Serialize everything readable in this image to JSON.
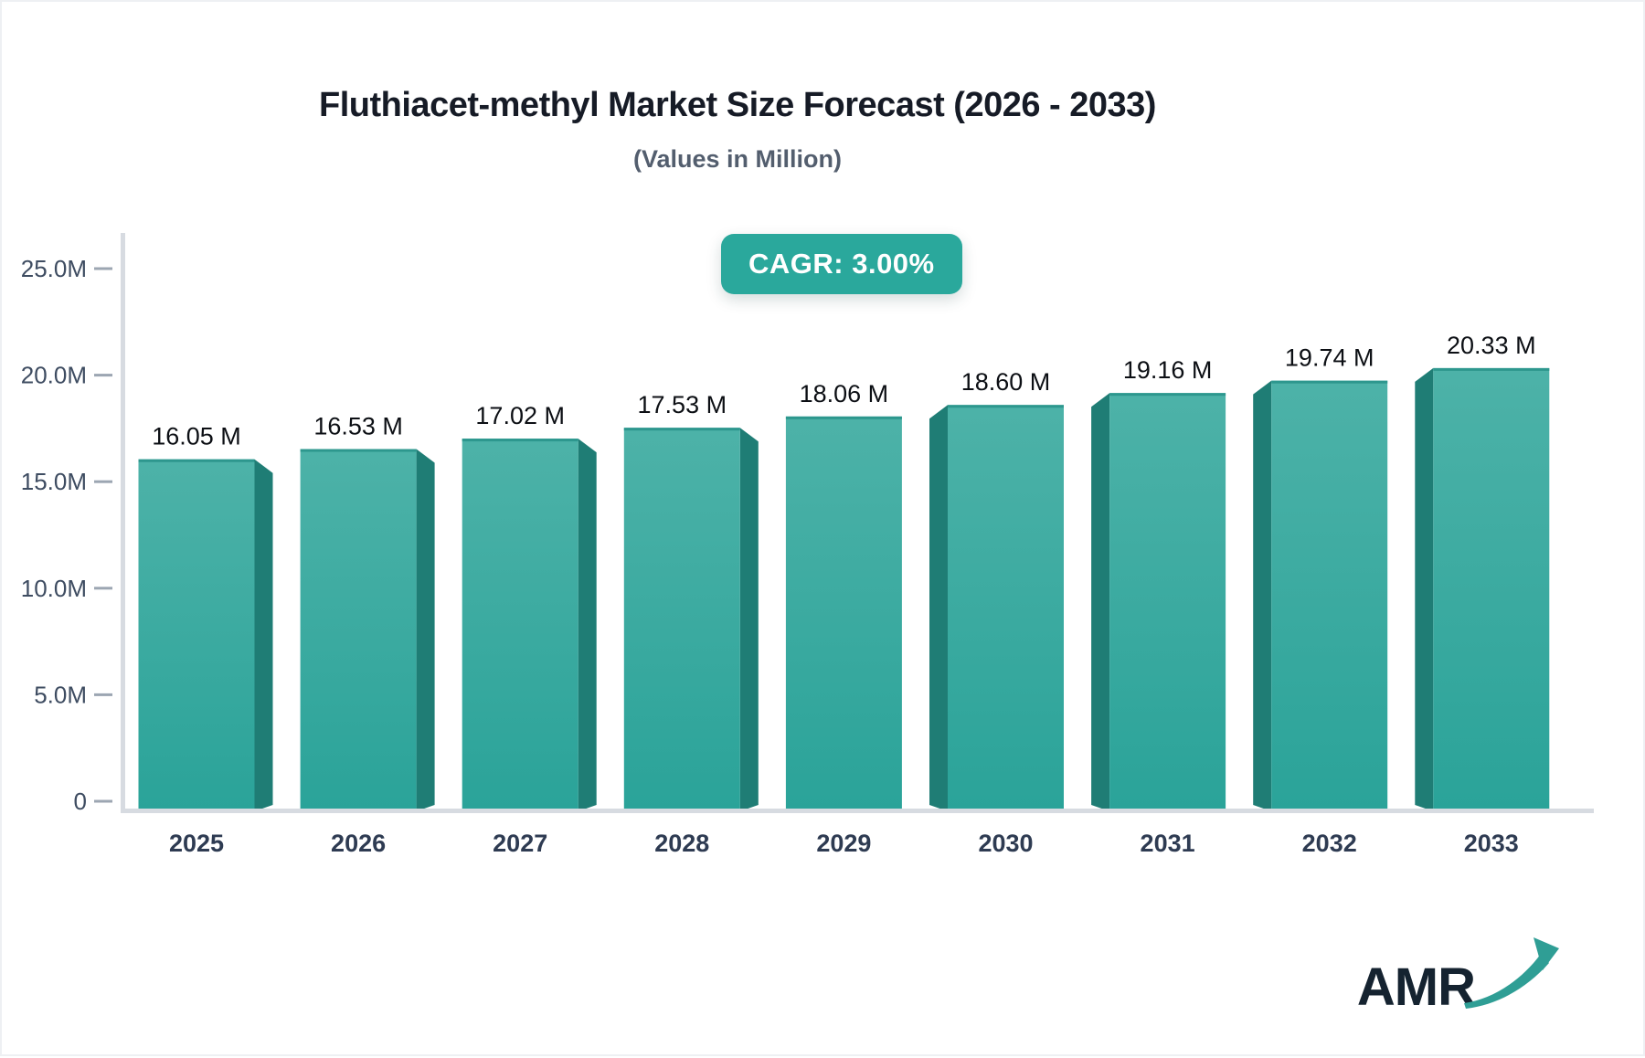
{
  "header": {
    "title": "Fluthiacet-methyl Market Size Forecast (2026 - 2033)",
    "subtitle": "(Values in Million)",
    "cagr_label": "CAGR: 3.00%"
  },
  "branding": {
    "logo_text": "AMR"
  },
  "colors": {
    "accent": "#2aa89c",
    "bar_front_top": "#4db2a8",
    "bar_front_bottom": "#2aa399",
    "bar_top_edge": "#2d978e",
    "bar_side": "#1f7d75",
    "axis_line": "#d7dbe1",
    "tick_mark": "#9ca6b2",
    "ytick_text": "#3e4c61",
    "xtick_text": "#2e3b52",
    "value_text": "#0c0f14"
  },
  "chart_data": {
    "type": "bar",
    "title": "Fluthiacet-methyl Market Size Forecast (2026 - 2033)",
    "subtitle": "(Values in Million)",
    "annotation": "CAGR: 3.00%",
    "categories": [
      "2025",
      "2026",
      "2027",
      "2028",
      "2029",
      "2030",
      "2031",
      "2032",
      "2033"
    ],
    "values": [
      16.05,
      16.53,
      17.02,
      17.53,
      18.06,
      18.6,
      19.16,
      19.74,
      20.33
    ],
    "value_labels": [
      "16.05 M",
      "16.53 M",
      "17.02 M",
      "17.53 M",
      "18.06 M",
      "18.60 M",
      "19.16 M",
      "19.74 M",
      "20.33 M"
    ],
    "xlabel": "",
    "ylabel": "",
    "ylim": [
      0,
      25
    ],
    "yticks": [
      {
        "value": 0,
        "label": "0"
      },
      {
        "value": 5,
        "label": "5.0M"
      },
      {
        "value": 10,
        "label": "10.0M"
      },
      {
        "value": 15,
        "label": "15.0M"
      },
      {
        "value": 20,
        "label": "20.0M"
      },
      {
        "value": 25,
        "label": "25.0M"
      }
    ],
    "grid": false,
    "legend": "none",
    "style": "3d-perspective-bars"
  }
}
